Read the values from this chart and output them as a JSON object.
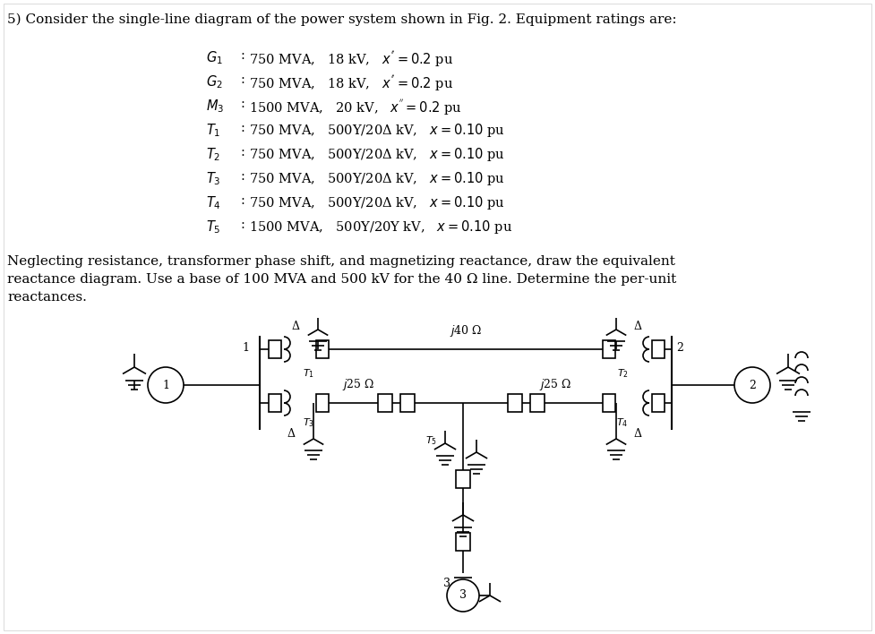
{
  "title_line": "5) Consider the single-line diagram of the power system shown in Fig. 2. Equipment ratings are:",
  "equipment_labels": [
    "$G_1$",
    "$G_2$",
    "$M_3$",
    "$T_1$",
    "$T_2$",
    "$T_3$",
    "$T_4$",
    "$T_5$"
  ],
  "equipment_specs": [
    "750 MVA,   18 kV,   $x^{''} = 0.2$ pu",
    "750 MVA,   18 kV,   $x^{''} = 0.2$ pu",
    "1500 MVA,   20 kV,   $x^{''} = 0.2$ pu",
    "750 MVA,   500Y/20Δ kV,   $x = 0.10$ pu",
    "750 MVA,   500Y/20Δ kV,   $x = 0.10$ pu",
    "750 MVA,   500Y/20Δ kV,   $x = 0.10$ pu",
    "750 MVA,   500Y/20Δ kV,   $x = 0.10$ pu",
    "1500 MVA,   500Y/20Y kV,   $x = 0.10$ pu"
  ],
  "para_line1": "Neglecting resistance, transformer phase shift, and magnetizing reactance, draw the equivalent",
  "para_line2": "reactance diagram. Use a base of 100 MVA and 500 kV for the 40 Ω line. Determine the per-unit",
  "para_line3": "reactances.",
  "bg_color": "#ffffff",
  "text_color": "#000000"
}
